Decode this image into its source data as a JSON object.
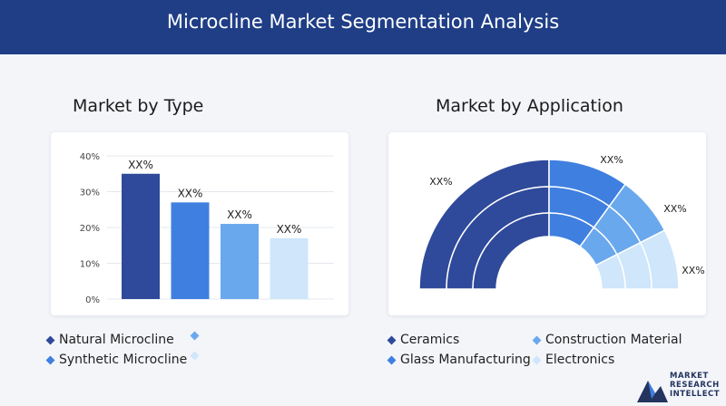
{
  "header": {
    "title": "Microcline Market Segmentation Analysis"
  },
  "left": {
    "title": "Market by Type",
    "legend": [
      {
        "label": "Natural Microcline",
        "color": "#2f4a9a"
      },
      {
        "label": "",
        "color": "#6aa8ee"
      },
      {
        "label": "Synthetic Microcline",
        "color": "#3f7fe0"
      },
      {
        "label": "",
        "color": "#cfe6fb"
      }
    ]
  },
  "right": {
    "title": "Market by Application",
    "legend": [
      {
        "label": "Ceramics",
        "color": "#2f4a9a"
      },
      {
        "label": "Construction Material",
        "color": "#6aa8ee"
      },
      {
        "label": "Glass Manufacturing",
        "color": "#3f7fe0"
      },
      {
        "label": "Electronics",
        "color": "#cfe6fb"
      }
    ]
  },
  "logo": {
    "line1": "MARKET",
    "line2": "RESEARCH",
    "line3": "INTELLECT",
    "color": "#24345f"
  },
  "chart_data": [
    {
      "type": "bar",
      "categories": [
        "Natural Microcline",
        "Synthetic Microcline",
        "",
        ""
      ],
      "values": [
        35,
        27,
        21,
        17
      ],
      "data_labels": [
        "XX%",
        "XX%",
        "XX%",
        "XX%"
      ],
      "colors": [
        "#2f4a9a",
        "#3f7fe0",
        "#6aa8ee",
        "#cfe6fb"
      ],
      "yticks": [
        "0%",
        "10%",
        "20%",
        "30%",
        "40%"
      ],
      "ylim": [
        0,
        40
      ],
      "grid": true
    },
    {
      "type": "pie",
      "style": "semicircle-donut",
      "categories": [
        "Ceramics",
        "Construction Material",
        "Glass Manufacturing",
        "Electronics"
      ],
      "values": [
        50,
        20,
        15,
        15
      ],
      "data_labels": [
        "XX%",
        "XX%",
        "XX%",
        "XX%"
      ],
      "colors": [
        "#2f4a9a",
        "#3f7fe0",
        "#6aa8ee",
        "#cfe6fb"
      ]
    }
  ]
}
